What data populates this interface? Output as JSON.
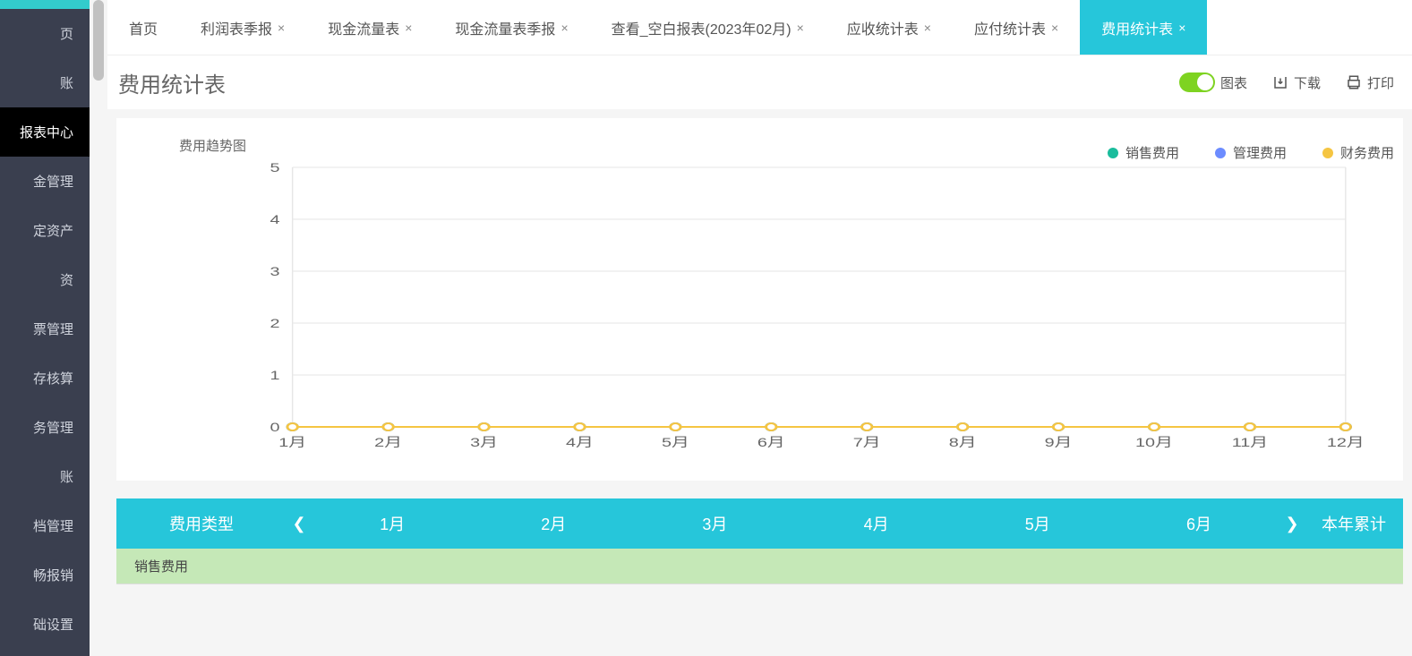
{
  "sidebar": {
    "items": [
      {
        "label": "页"
      },
      {
        "label": "账"
      },
      {
        "label": "报表中心"
      },
      {
        "label": "金管理"
      },
      {
        "label": "定资产"
      },
      {
        "label": "资"
      },
      {
        "label": "票管理"
      },
      {
        "label": "存核算"
      },
      {
        "label": "务管理"
      },
      {
        "label": "账"
      },
      {
        "label": "档管理"
      },
      {
        "label": "畅报销"
      },
      {
        "label": "础设置"
      }
    ],
    "active_index": 2
  },
  "tabs": {
    "items": [
      {
        "label": "首页",
        "closable": false
      },
      {
        "label": "利润表季报",
        "closable": true
      },
      {
        "label": "现金流量表",
        "closable": true
      },
      {
        "label": "现金流量表季报",
        "closable": true
      },
      {
        "label": "查看_空白报表(2023年02月)",
        "closable": true
      },
      {
        "label": "应收统计表",
        "closable": true
      },
      {
        "label": "应付统计表",
        "closable": true
      },
      {
        "label": "费用统计表",
        "closable": true
      }
    ],
    "active_index": 7
  },
  "page": {
    "title": "费用统计表",
    "toggle_label": "图表",
    "download_label": "下载",
    "print_label": "打印"
  },
  "chart": {
    "title": "费用趋势图",
    "type": "line",
    "x_labels": [
      "1月",
      "2月",
      "3月",
      "4月",
      "5月",
      "6月",
      "7月",
      "8月",
      "9月",
      "10月",
      "11月",
      "12月"
    ],
    "series": [
      {
        "name": "销售费用",
        "color": "#1abc9c",
        "values": [
          0,
          0,
          0,
          0,
          0,
          0,
          0,
          0,
          0,
          0,
          0,
          0
        ]
      },
      {
        "name": "管理费用",
        "color": "#6c8cff",
        "values": [
          0,
          0,
          0,
          0,
          0,
          0,
          0,
          0,
          0,
          0,
          0,
          0
        ]
      },
      {
        "name": "财务费用",
        "color": "#f5c542",
        "values": [
          0,
          0,
          0,
          0,
          0,
          0,
          0,
          0,
          0,
          0,
          0,
          0
        ]
      }
    ],
    "ylim": [
      0,
      5
    ],
    "ytick_step": 1,
    "grid_color": "#e6e6e6",
    "axis_text_color": "#666",
    "marker_style": "circle",
    "marker_radius": 4,
    "line_width": 2,
    "background_color": "#ffffff",
    "axis_fontsize": 14
  },
  "table": {
    "type_header": "费用类型",
    "month_headers": [
      "1月",
      "2月",
      "3月",
      "4月",
      "5月",
      "6月"
    ],
    "year_total_header": "本年累计",
    "rows": [
      {
        "type_label": "销售费用",
        "cells": [
          "",
          "",
          "",
          "",
          "",
          ""
        ],
        "row_color": "#c5e8b7"
      }
    ],
    "header_bg": "#26c6da",
    "header_text_color": "#ffffff"
  },
  "colors": {
    "accent": "#26c6da",
    "sidebar_bg": "#3a3f4f",
    "toggle_on": "#7ed321"
  }
}
